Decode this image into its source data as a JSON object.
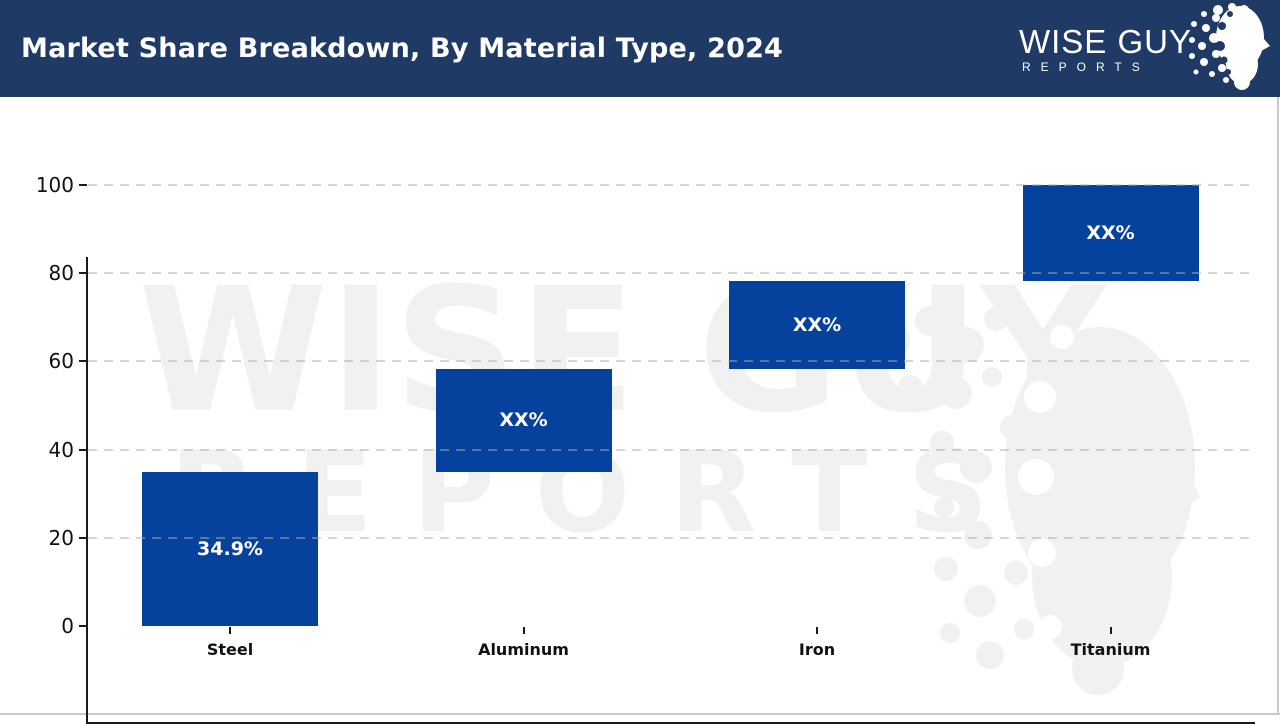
{
  "header": {
    "title": "Market Share Breakdown, By Material Type, 2024",
    "bg_color": "#203A66",
    "logo": {
      "wordmark": "WISE GUY",
      "sub": "REPORTS"
    }
  },
  "watermark": {
    "wordmark": "WISE GUY",
    "sub": "REPORTS"
  },
  "chart_data": {
    "type": "bar",
    "subtype": "floating-waterfall",
    "title": "Market Share Breakdown, By Material Type, 2024",
    "categories": [
      "Steel",
      "Aluminum",
      "Iron",
      "Titanium"
    ],
    "segments": [
      {
        "category": "Steel",
        "start": 0,
        "end": 34.9,
        "label": "34.9%"
      },
      {
        "category": "Aluminum",
        "start": 34.9,
        "end": 58.3,
        "label": "XX%"
      },
      {
        "category": "Iron",
        "start": 58.3,
        "end": 78.2,
        "label": "XX%"
      },
      {
        "category": "Titanium",
        "start": 78.2,
        "end": 100,
        "label": "XX%"
      }
    ],
    "xlabel": "",
    "ylabel": "",
    "ylim": [
      0,
      100
    ],
    "yticks": [
      0,
      20,
      40,
      60,
      80,
      100
    ],
    "grid": {
      "horizontal": true,
      "style": "dashed"
    },
    "legend": "none",
    "bar_color": "#05429D",
    "value_label_color": "#FFFFFF"
  }
}
